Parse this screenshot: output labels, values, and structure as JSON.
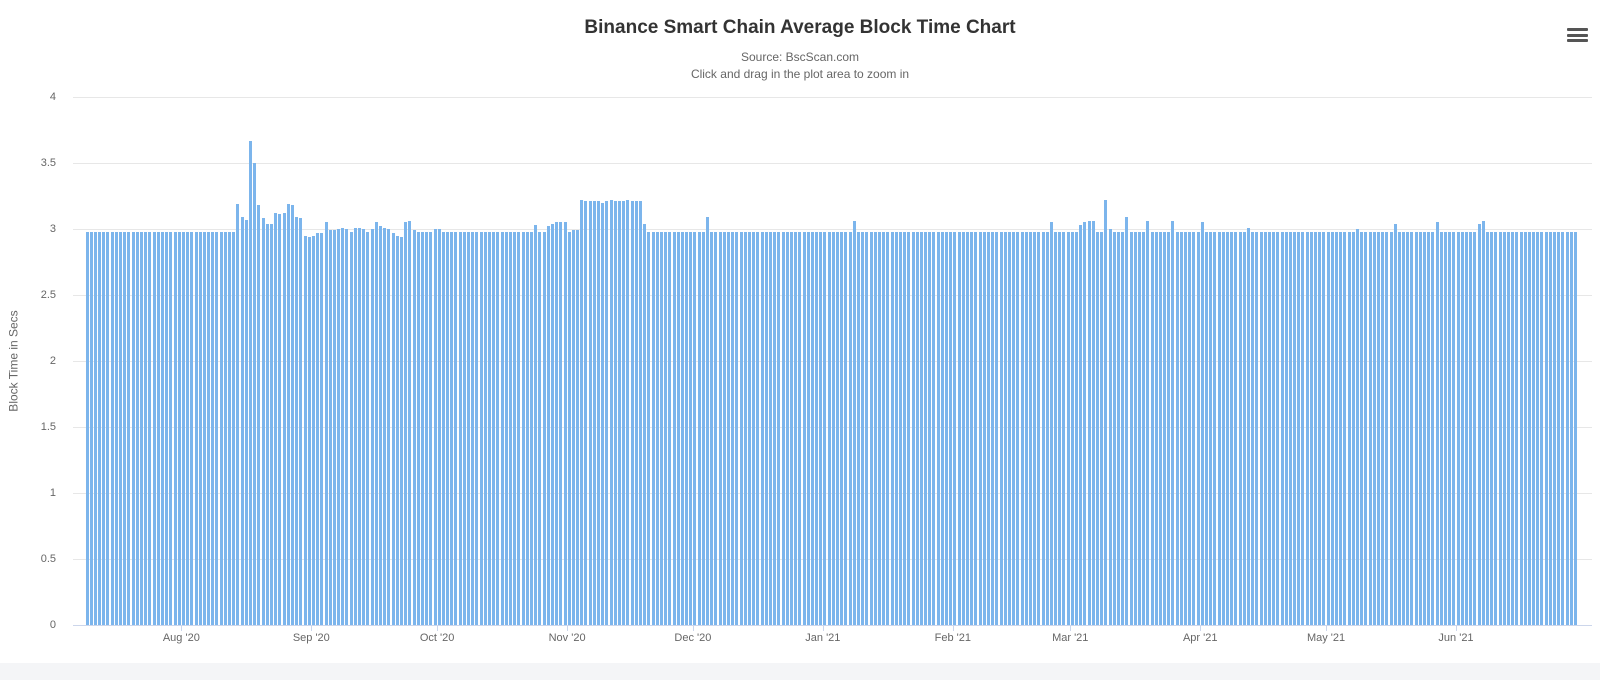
{
  "header": {
    "title": "Binance Smart Chain Average Block Time Chart",
    "subtitle_source": "Source: BscScan.com",
    "subtitle_hint": "Click and drag in the plot area to zoom in"
  },
  "colors": {
    "bar": "#7cb5ec",
    "grid": "#e7e7e7",
    "axis_line": "#ccd6eb",
    "title_text": "#333333",
    "subtitle_text": "#666666",
    "axis_text": "#666666",
    "menu_icon": "#555555"
  },
  "chart_data": {
    "type": "bar",
    "title": "Binance Smart Chain Average Block Time Chart",
    "subtitle": "Source: BscScan.com",
    "annotation": "Click and drag in the plot area to zoom in",
    "xlabel": "",
    "ylabel": "Block Time in Secs",
    "ylim": [
      0,
      4
    ],
    "grid": true,
    "legend": "none",
    "x_interval": "daily",
    "ytick_values": [
      0,
      0.5,
      1,
      1.5,
      2,
      2.5,
      3,
      3.5,
      4
    ],
    "ytick_labels": [
      "0",
      "0.5",
      "1",
      "1.5",
      "2",
      "2.5",
      "3",
      "3.5",
      "4"
    ],
    "x_ticks": [
      {
        "label": "Aug '20",
        "day_index": 23
      },
      {
        "label": "Sep '20",
        "day_index": 54
      },
      {
        "label": "Oct '20",
        "day_index": 84
      },
      {
        "label": "Nov '20",
        "day_index": 115
      },
      {
        "label": "Dec '20",
        "day_index": 145
      },
      {
        "label": "Jan '21",
        "day_index": 176
      },
      {
        "label": "Feb '21",
        "day_index": 207
      },
      {
        "label": "Mar '21",
        "day_index": 235
      },
      {
        "label": "Apr '21",
        "day_index": 266
      },
      {
        "label": "May '21",
        "day_index": 296
      },
      {
        "label": "Jun '21",
        "day_index": 327
      }
    ],
    "values": [
      2.98,
      2.98,
      2.98,
      2.98,
      2.98,
      2.98,
      2.98,
      2.98,
      2.98,
      2.98,
      2.98,
      2.98,
      2.98,
      2.98,
      2.98,
      2.98,
      2.98,
      2.98,
      2.98,
      2.98,
      2.98,
      2.98,
      2.98,
      2.98,
      2.98,
      2.98,
      2.98,
      2.98,
      2.98,
      2.98,
      2.98,
      2.98,
      2.98,
      2.98,
      2.98,
      2.98,
      3.19,
      3.09,
      3.07,
      3.67,
      3.5,
      3.18,
      3.08,
      3.04,
      3.04,
      3.12,
      3.11,
      3.12,
      3.19,
      3.18,
      3.09,
      3.08,
      2.95,
      2.94,
      2.95,
      2.97,
      2.97,
      3.05,
      2.99,
      2.99,
      3.0,
      3.01,
      3.0,
      2.98,
      3.01,
      3.01,
      3.0,
      2.98,
      3.0,
      3.05,
      3.02,
      3.01,
      3.0,
      2.97,
      2.95,
      2.94,
      3.05,
      3.06,
      2.99,
      2.98,
      2.98,
      2.98,
      2.98,
      3.0,
      3.0,
      2.98,
      2.98,
      2.98,
      2.98,
      2.98,
      2.98,
      2.98,
      2.98,
      2.98,
      2.98,
      2.98,
      2.98,
      2.98,
      2.98,
      2.98,
      2.98,
      2.98,
      2.98,
      2.98,
      2.98,
      2.98,
      2.98,
      3.03,
      2.98,
      2.98,
      3.02,
      3.04,
      3.05,
      3.05,
      3.05,
      2.98,
      2.99,
      2.99,
      3.22,
      3.21,
      3.21,
      3.21,
      3.21,
      3.2,
      3.21,
      3.22,
      3.21,
      3.21,
      3.21,
      3.22,
      3.21,
      3.21,
      3.21,
      3.04,
      2.98,
      2.98,
      2.98,
      2.98,
      2.98,
      2.98,
      2.98,
      2.98,
      2.98,
      2.98,
      2.98,
      2.98,
      2.98,
      2.98,
      3.09,
      2.98,
      2.98,
      2.98,
      2.98,
      2.98,
      2.98,
      2.98,
      2.98,
      2.98,
      2.98,
      2.98,
      2.98,
      2.98,
      2.98,
      2.98,
      2.98,
      2.98,
      2.98,
      2.98,
      2.98,
      2.98,
      2.98,
      2.98,
      2.98,
      2.98,
      2.98,
      2.98,
      2.98,
      2.98,
      2.98,
      2.98,
      2.98,
      2.98,
      2.98,
      3.06,
      2.98,
      2.98,
      2.98,
      2.98,
      2.98,
      2.98,
      2.98,
      2.98,
      2.98,
      2.98,
      2.98,
      2.98,
      2.98,
      2.98,
      2.98,
      2.98,
      2.98,
      2.98,
      2.98,
      2.98,
      2.98,
      2.98,
      2.98,
      2.98,
      2.98,
      2.98,
      2.98,
      2.98,
      2.98,
      2.98,
      2.98,
      2.98,
      2.98,
      2.98,
      2.98,
      2.98,
      2.98,
      2.98,
      2.98,
      2.98,
      2.98,
      2.98,
      2.98,
      2.98,
      2.98,
      2.98,
      3.05,
      2.98,
      2.98,
      2.98,
      2.98,
      2.98,
      2.98,
      3.03,
      3.05,
      3.06,
      3.06,
      2.98,
      2.98,
      3.22,
      3.0,
      2.98,
      2.98,
      2.98,
      3.09,
      2.98,
      2.98,
      2.98,
      2.98,
      3.06,
      2.98,
      2.98,
      2.98,
      2.98,
      2.98,
      3.06,
      2.98,
      2.98,
      2.98,
      2.98,
      2.98,
      2.98,
      3.05,
      2.98,
      2.98,
      2.98,
      2.98,
      2.98,
      2.98,
      2.98,
      2.98,
      2.98,
      2.98,
      3.01,
      2.98,
      2.98,
      2.98,
      2.98,
      2.98,
      2.98,
      2.98,
      2.98,
      2.98,
      2.98,
      2.98,
      2.98,
      2.98,
      2.98,
      2.98,
      2.98,
      2.98,
      2.98,
      2.98,
      2.98,
      2.98,
      2.98,
      2.98,
      2.98,
      2.98,
      3.0,
      2.98,
      2.98,
      2.98,
      2.98,
      2.98,
      2.98,
      2.98,
      2.98,
      3.04,
      2.98,
      2.98,
      2.98,
      2.98,
      2.98,
      2.98,
      2.98,
      2.98,
      2.98,
      3.05,
      2.98,
      2.98,
      2.98,
      2.98,
      2.98,
      2.98,
      2.98,
      2.98,
      2.98,
      3.04,
      3.06,
      2.98,
      2.98,
      2.98,
      2.98,
      2.98,
      2.98,
      2.98,
      2.98,
      2.98,
      2.98,
      2.98,
      2.98,
      2.98,
      2.98,
      2.98,
      2.98,
      2.98,
      2.98,
      2.98,
      2.98,
      2.98,
      2.98
    ]
  }
}
